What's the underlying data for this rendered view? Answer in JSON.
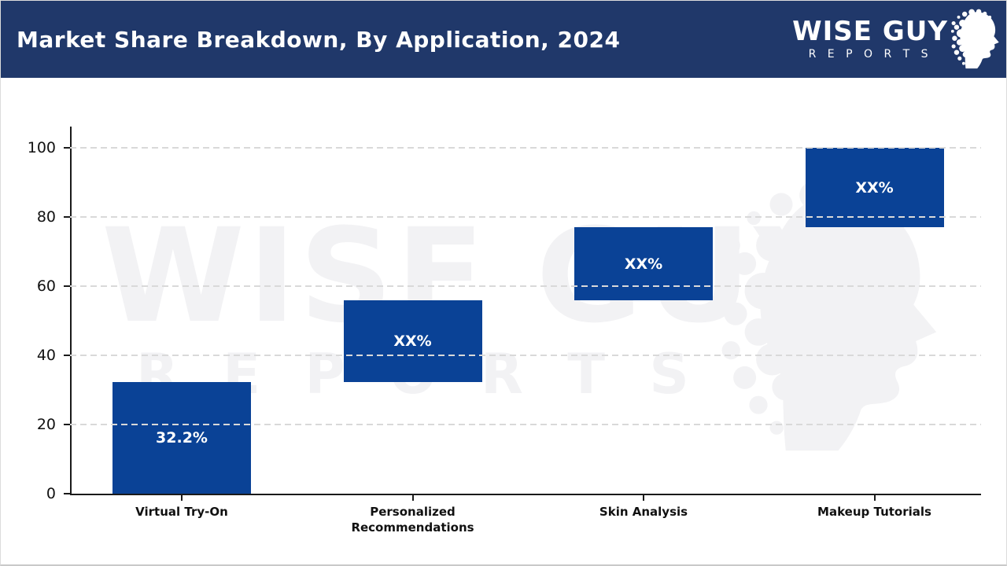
{
  "header": {
    "title": "Market Share Breakdown, By Application, 2024",
    "logo": {
      "line1": "WISE GUY",
      "line2": "R E P O R T S",
      "icon": "face-profile-dots-icon"
    }
  },
  "watermark": {
    "line1": "WISE GUY",
    "line2": "R E P O R T S",
    "icon": "face-profile-dots-icon"
  },
  "colors": {
    "header_bg": "#20386a",
    "bar": "#0a4296",
    "bar_label": "#ffffff",
    "grid": "#d9d9d9",
    "axis": "#1a1a1a",
    "watermark": "#f2f2f4"
  },
  "chart_data": {
    "type": "bar",
    "subtype": "waterfall",
    "title": "Market Share Breakdown, By Application, 2024",
    "xlabel": "",
    "ylabel": "",
    "ylim": [
      0,
      100
    ],
    "yticks": [
      0,
      20,
      40,
      60,
      80,
      100
    ],
    "grid": "horizontal-dashed",
    "legend": "none",
    "categories": [
      "Virtual Try-On",
      "Personalized Recommendations",
      "Skin Analysis",
      "Makeup Tutorials"
    ],
    "segments": [
      {
        "category": "Virtual Try-On",
        "label": "32.2%",
        "start": 0,
        "end": 32.2
      },
      {
        "category": "Personalized Recommendations",
        "label": "XX%",
        "start": 32.2,
        "end": 55.9
      },
      {
        "category": "Skin Analysis",
        "label": "XX%",
        "start": 55.9,
        "end": 77.0
      },
      {
        "category": "Makeup Tutorials",
        "label": "XX%",
        "start": 77.0,
        "end": 100.0
      }
    ]
  }
}
